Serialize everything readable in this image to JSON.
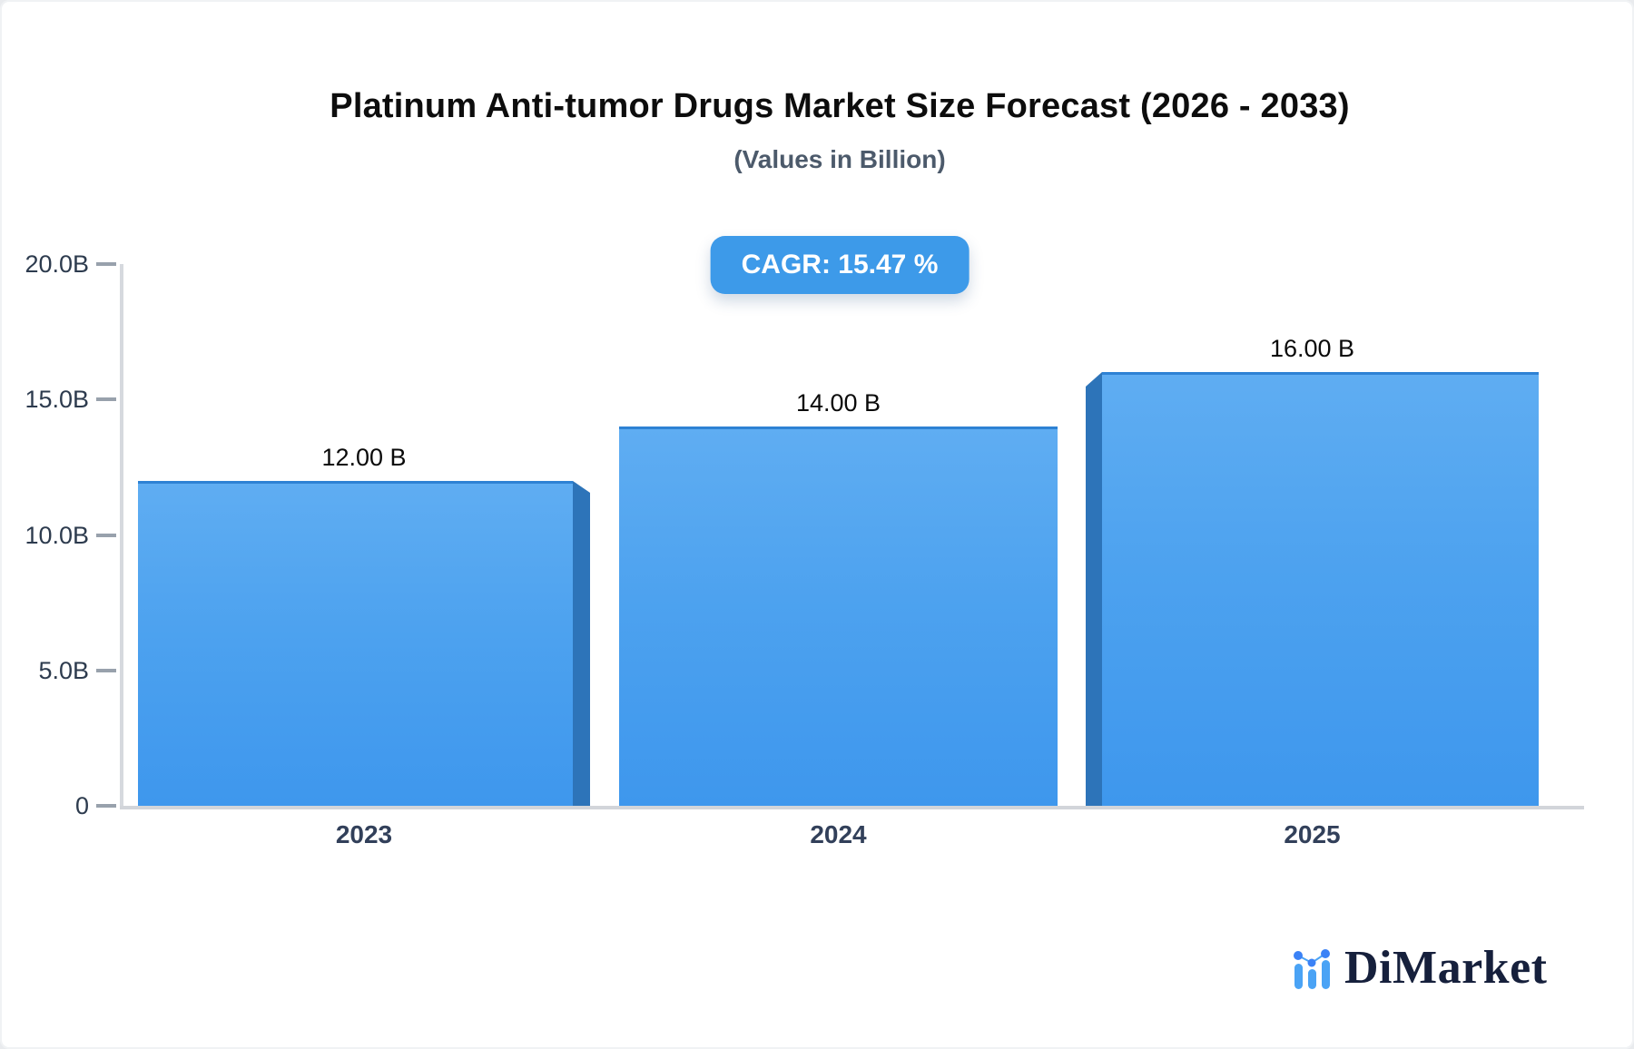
{
  "header": {
    "title": "Platinum Anti-tumor Drugs Market Size Forecast (2026 - 2033)",
    "subtitle": "(Values in Billion)",
    "cagr_badge": "CAGR: 15.47 %"
  },
  "chart_data": {
    "type": "bar",
    "title": "Platinum Anti-tumor Drugs Market Size Forecast (2026 - 2033)",
    "subtitle": "(Values in Billion)",
    "cagr_percent": 15.47,
    "categories": [
      "2023",
      "2024",
      "2025"
    ],
    "values": [
      12,
      14,
      16
    ],
    "value_labels": [
      "12.00 B",
      "14.00 B",
      "16.00 B"
    ],
    "unit": "Billion (B)",
    "ylim": [
      0,
      20
    ],
    "ytick_values": [
      0,
      5,
      10,
      15,
      20
    ],
    "ytick_labels": [
      "0",
      "5.0B",
      "10.0B",
      "15.0B",
      "20.0B"
    ],
    "grid": false,
    "legend": false,
    "bar_colors": {
      "fill_top": "#5fadf2",
      "fill_bottom": "#3e97ed",
      "edge": "#2e82d4",
      "side_face": "#2d74b9"
    }
  },
  "footer": {
    "brand": "DiMarket",
    "logo_icon": "mini-bar-chart-with-dots-icon"
  },
  "colors": {
    "accent_blue": "#3d9ae9",
    "axis_line": "#d6d9de",
    "tick_dash": "#98a1ac",
    "axis_label": "#2d3b4e",
    "category_label": "#32405a",
    "value_label": "#0a0a0a",
    "brand_navy": "#16203c",
    "logo_blue": "#4aa3f5"
  }
}
